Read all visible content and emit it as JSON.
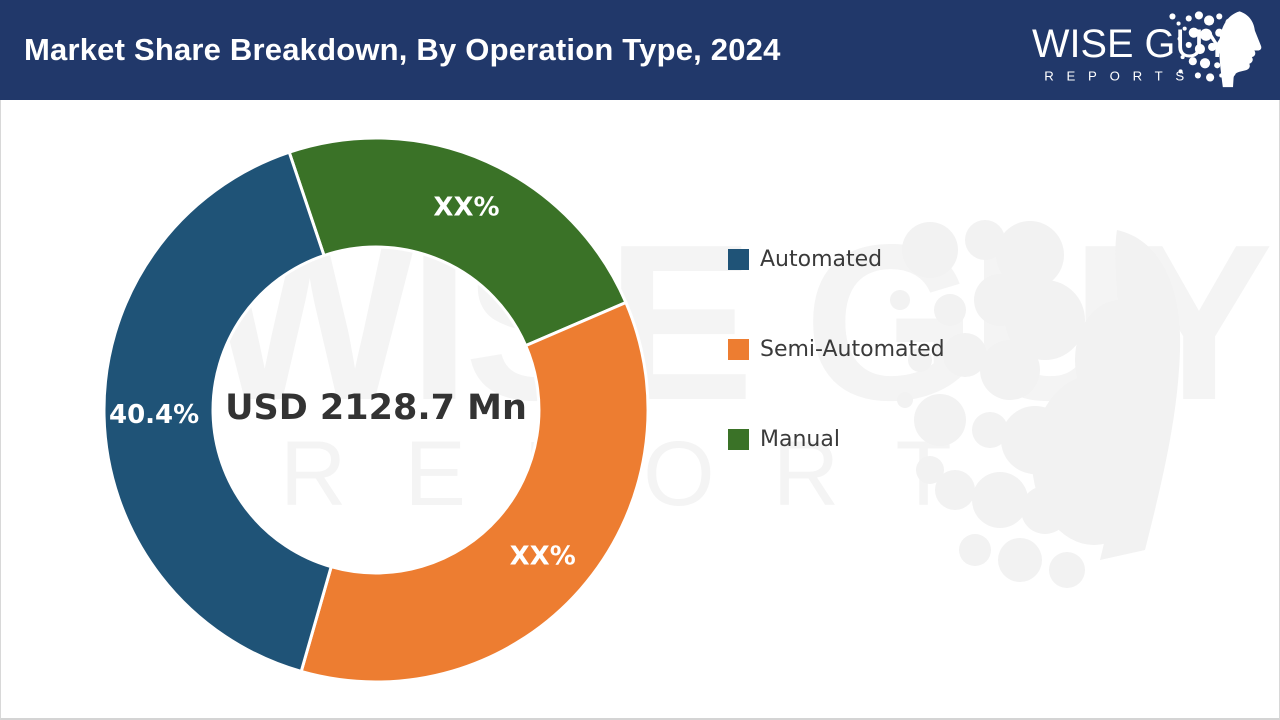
{
  "header": {
    "title": "Market Share Breakdown, By Operation Type, 2024",
    "logo": {
      "line1": "WISE GUY",
      "line2": "REPORTS",
      "icon": "dotted-head-profile-icon"
    }
  },
  "watermark": {
    "line1": "WISE GUY",
    "line2": "REPORTS",
    "icon": "dotted-head-profile-icon"
  },
  "chart_data": {
    "type": "pie",
    "subtype": "donut",
    "title": "Market Share Breakdown, By Operation Type, 2024",
    "center_label": "USD 2128.7 Mn",
    "units": "USD Mn",
    "total_value_mn": 2128.7,
    "start_angle_deg": -18.6,
    "direction": "clockwise",
    "legend_position": "right",
    "segments": [
      {
        "name": "Manual",
        "label": "XX%",
        "value_pct": 23.7,
        "color": "#3A7227"
      },
      {
        "name": "Semi-Automated",
        "label": "XX%",
        "value_pct": 35.9,
        "color": "#ED7D31"
      },
      {
        "name": "Automated",
        "label": "40.4%",
        "value_pct": 40.4,
        "color": "#1F5377"
      }
    ],
    "legend": [
      {
        "label": "Automated",
        "color": "#1F5377"
      },
      {
        "label": "Semi-Automated",
        "color": "#ED7D31"
      },
      {
        "label": "Manual",
        "color": "#3A7227"
      }
    ]
  },
  "colors": {
    "header_bg": "#21386A",
    "frame_border": "#D8D8D8",
    "center_text": "#333333",
    "legend_text": "#3A3A3A",
    "watermark": "#F4F4F4"
  }
}
